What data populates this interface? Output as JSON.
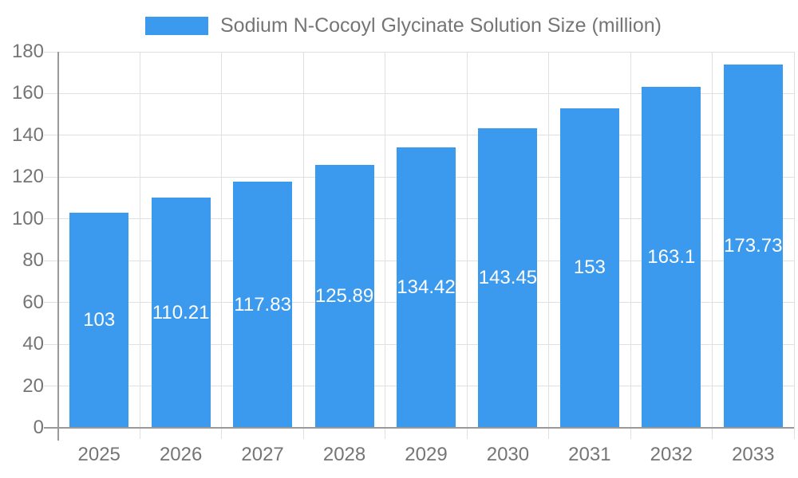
{
  "legend": {
    "label": "Sodium N-Cocoyl Glycinate Solution Size (million)",
    "swatch_color": "#3B99EE"
  },
  "chart_data": {
    "type": "bar",
    "title": "Sodium N-Cocoyl Glycinate Solution Size (million)",
    "categories": [
      "2025",
      "2026",
      "2027",
      "2028",
      "2029",
      "2030",
      "2031",
      "2032",
      "2033"
    ],
    "values": [
      103,
      110.21,
      117.83,
      125.89,
      134.42,
      143.45,
      153,
      163.1,
      173.73
    ],
    "value_labels": [
      "103",
      "110.21",
      "117.83",
      "125.89",
      "134.42",
      "143.45",
      "153",
      "163.1",
      "173.73"
    ],
    "series": [
      {
        "name": "Sodium N-Cocoyl Glycinate Solution Size (million)",
        "values": [
          103,
          110.21,
          117.83,
          125.89,
          134.42,
          143.45,
          153,
          163.1,
          173.73
        ]
      }
    ],
    "xlabel": "",
    "ylabel": "",
    "ylim": [
      0,
      180
    ],
    "yticks": [
      0,
      20,
      40,
      60,
      80,
      100,
      120,
      140,
      160,
      180
    ],
    "grid": true,
    "legend_position": "top-center",
    "bar_color": "#3B99EE",
    "bar_label_color": "#FFFFFF",
    "axis_text_color": "#757575",
    "grid_color": "#E0E0E0",
    "axis_line_color": "#999999",
    "background_color": "#FFFFFF"
  }
}
